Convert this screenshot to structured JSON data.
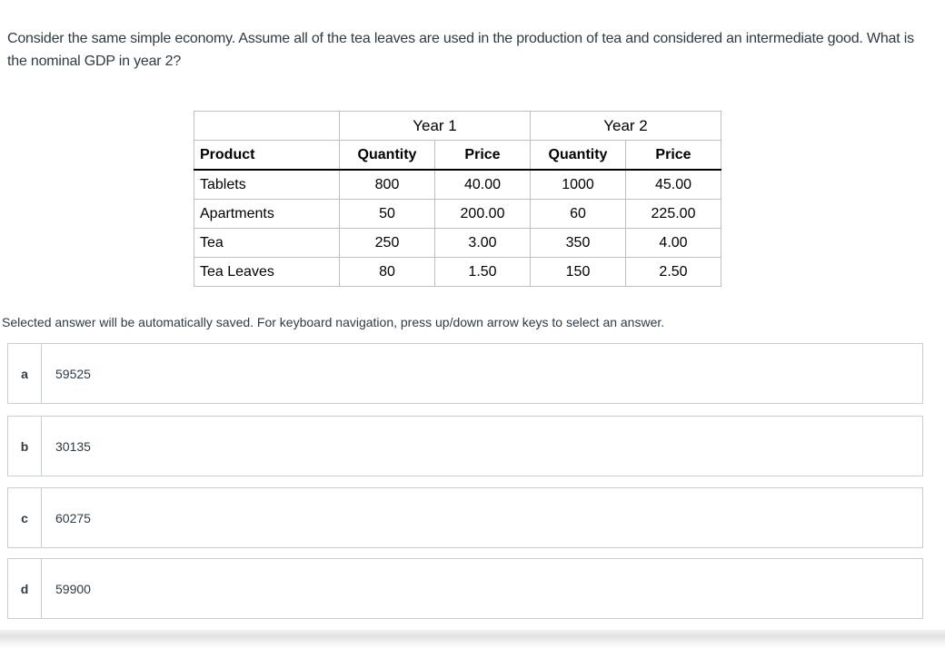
{
  "question": {
    "text": "Consider the same simple economy. Assume all of the tea leaves are used in the production of tea and considered an intermediate good. What is the nominal GDP in year 2?"
  },
  "table": {
    "year1_header": "Year 1",
    "year2_header": "Year 2",
    "col_product": "Product",
    "col_quantity1": "Quantity",
    "col_price1": "Price",
    "col_quantity2": "Quantity",
    "col_price2": "Price",
    "rows": [
      [
        "Tablets",
        "800",
        "40.00",
        "1000",
        "45.00"
      ],
      [
        "Apartments",
        "50",
        "200.00",
        "60",
        "225.00"
      ],
      [
        "Tea",
        "250",
        "3.00",
        "350",
        "4.00"
      ],
      [
        "Tea Leaves",
        "80",
        "1.50",
        "150",
        "2.50"
      ]
    ]
  },
  "instruction": "Selected answer will be automatically saved. For keyboard navigation, press up/down arrow keys to select an answer.",
  "options": [
    {
      "label": "a",
      "value": "59525"
    },
    {
      "label": "b",
      "value": "30135"
    },
    {
      "label": "c",
      "value": "60275"
    },
    {
      "label": "d",
      "value": "59900"
    }
  ],
  "colors": {
    "text_primary": "#2d3b45",
    "option_border": "#c7cdd1",
    "table_grid": "#bfbfbf",
    "table_header_rule": "#000000"
  }
}
